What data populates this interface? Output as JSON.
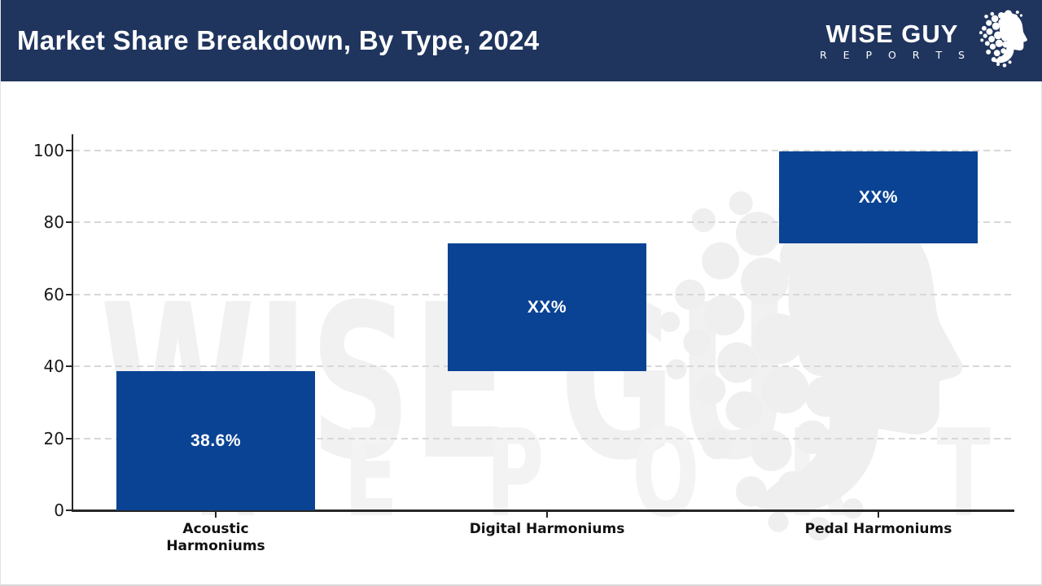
{
  "header": {
    "title": "Market Share Breakdown, By Type, 2024",
    "background_color": "#1f355e",
    "brand": {
      "name_line1": "WISE GUY",
      "name_line2": "R E P O R T S",
      "logo_icon": "dotted-head-profile"
    }
  },
  "watermark": {
    "line1": "WISE GUY",
    "line2": "R E P O R T S",
    "icon": "dotted-head-profile"
  },
  "chart_data": {
    "type": "bar",
    "subtype": "waterfall-stacked-percent",
    "title": "Market Share Breakdown, By Type, 2024",
    "categories": [
      "Acoustic\nHarmoniums",
      "Digital Harmoniums",
      "Pedal Harmoniums"
    ],
    "segments": [
      {
        "category": "Acoustic Harmoniums",
        "start": 0,
        "end": 38.6,
        "label": "38.6%"
      },
      {
        "category": "Digital Harmoniums",
        "start": 38.6,
        "end": 74.1,
        "label": "XX%"
      },
      {
        "category": "Pedal Harmoniums",
        "start": 74.1,
        "end": 99.8,
        "label": "XX%"
      }
    ],
    "yticks": [
      0,
      20,
      40,
      60,
      80,
      100
    ],
    "ylim": [
      0,
      100
    ],
    "xlabel": "",
    "ylabel": "",
    "grid": "dashed-horizontal",
    "legend": "none",
    "bar_color": "#0a4394",
    "bar_label_color": "#ffffff",
    "axis_color": "#262626",
    "grid_color": "#d8d8d8"
  }
}
